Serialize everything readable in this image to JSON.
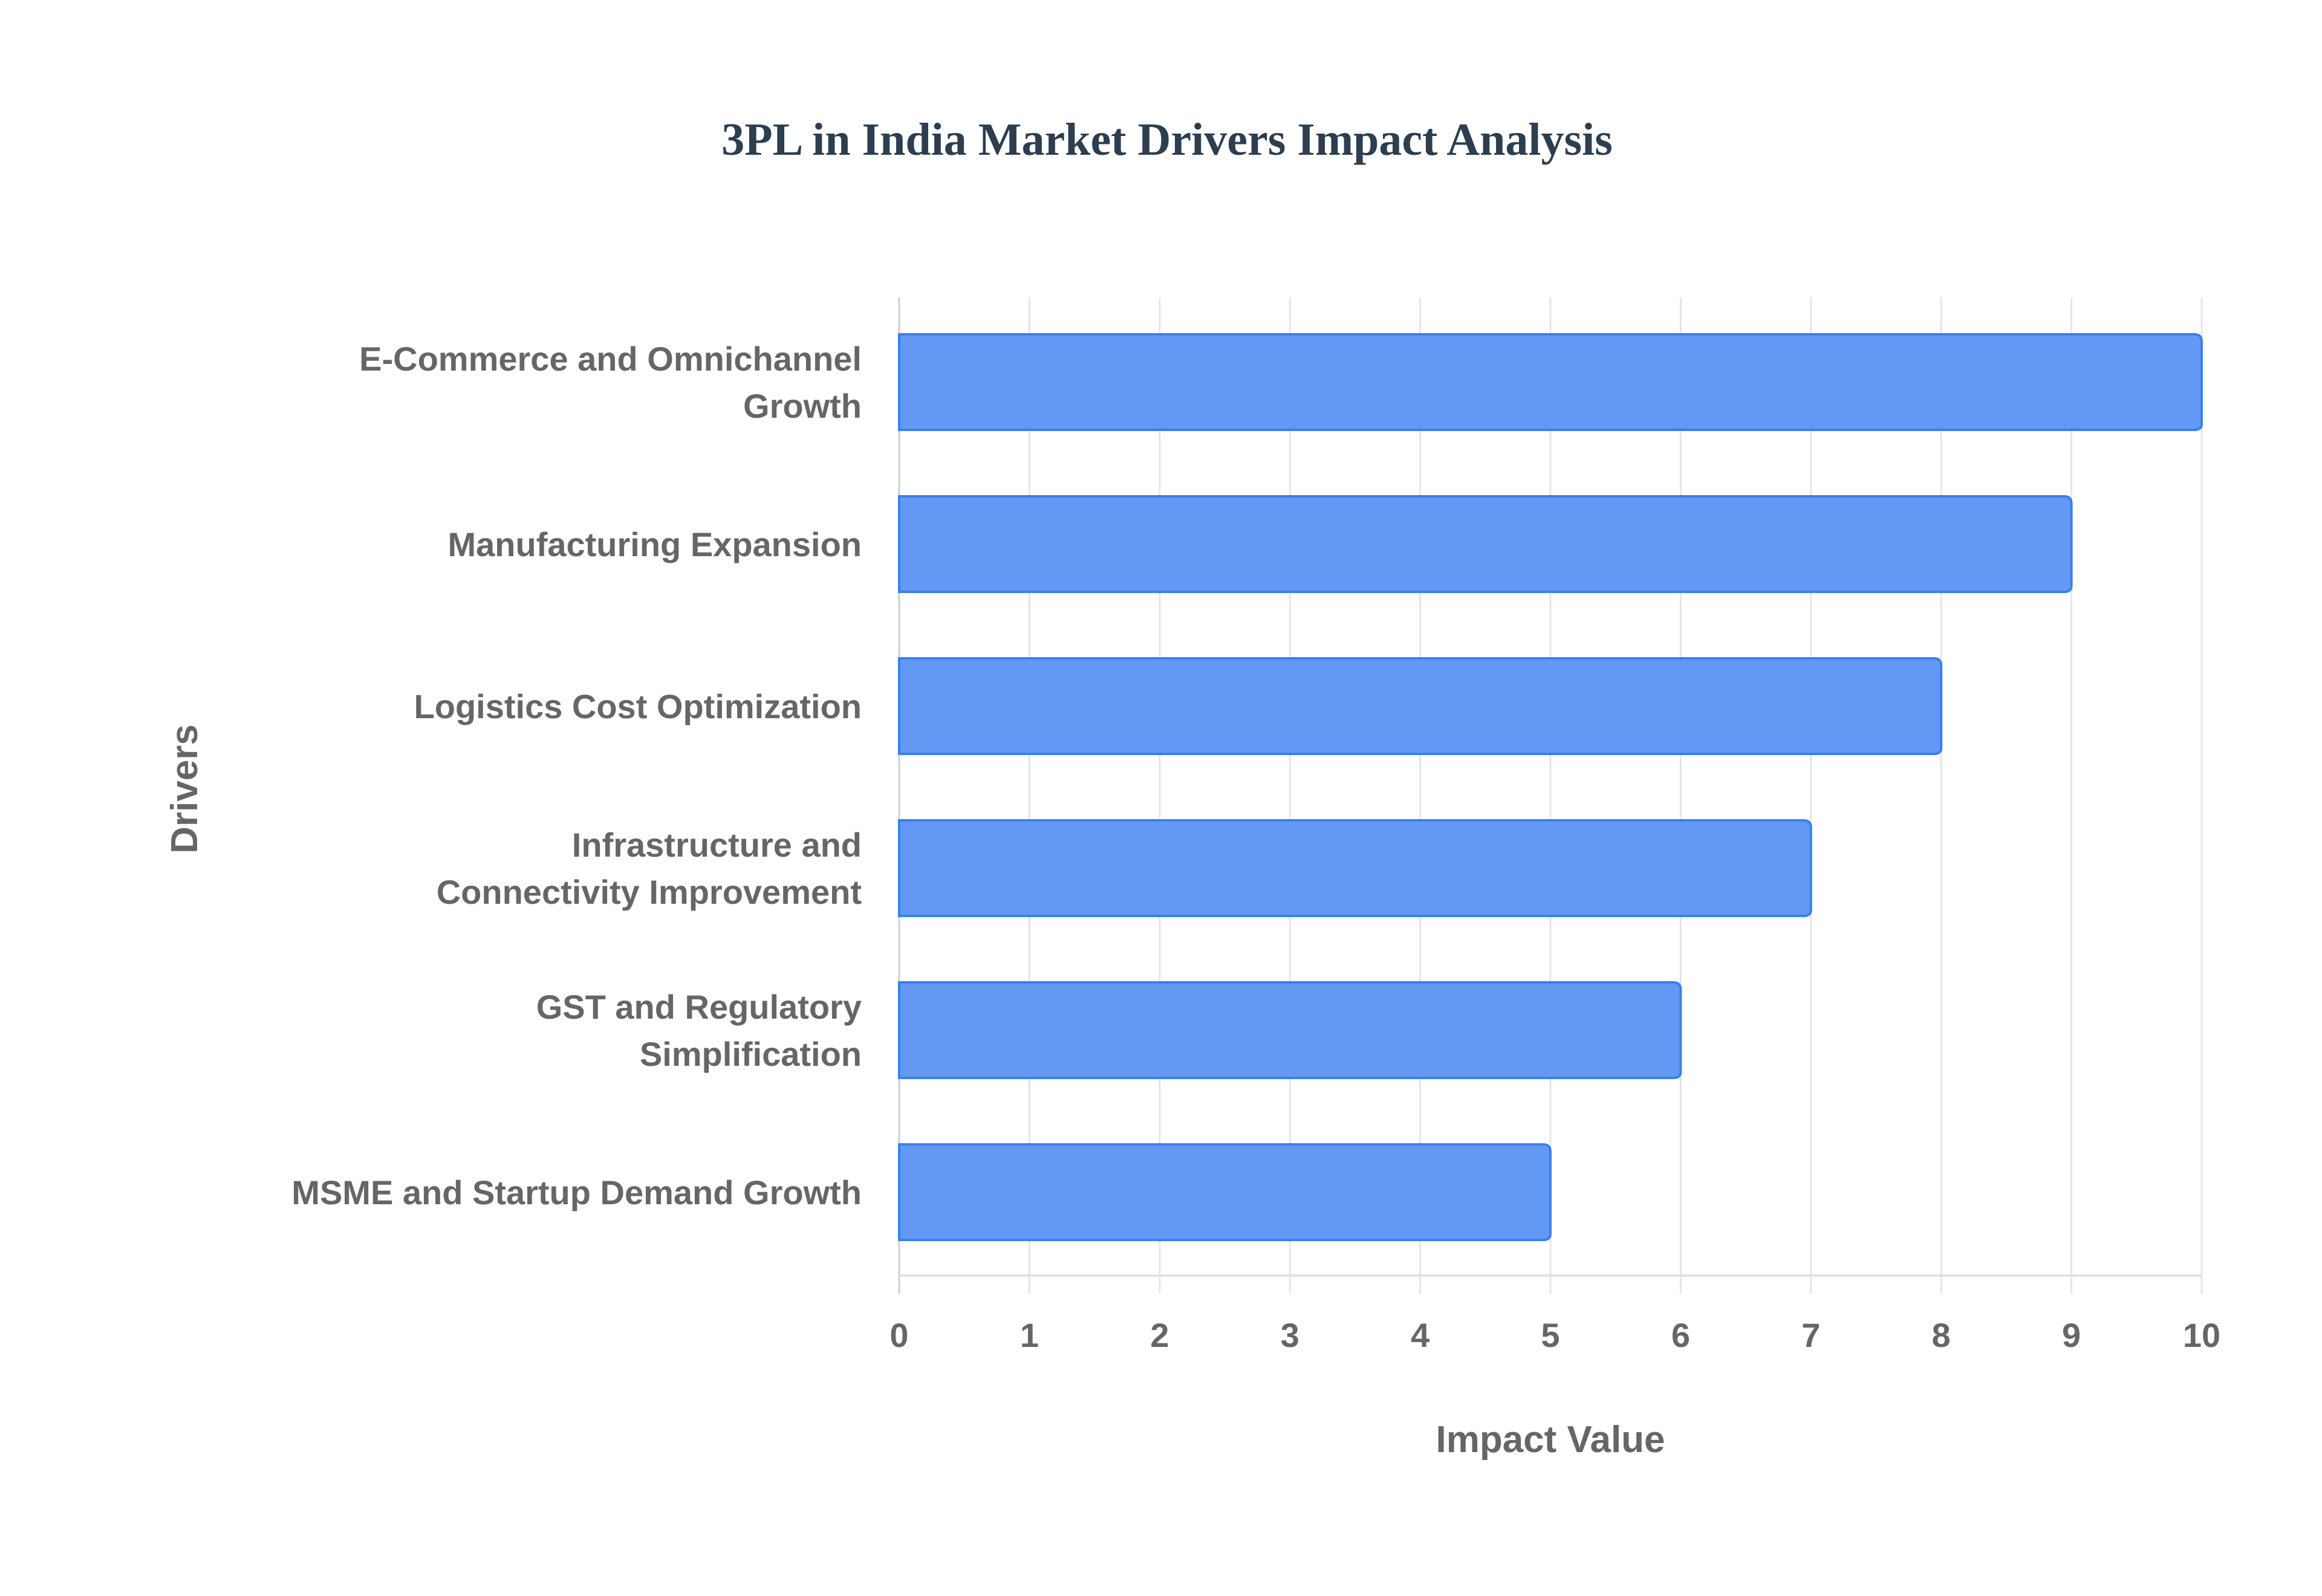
{
  "chart_data": {
    "type": "bar",
    "orientation": "horizontal",
    "title": "3PL in India Market Drivers Impact Analysis",
    "xlabel": "Impact Value",
    "ylabel": "Drivers",
    "categories": [
      [
        "E-Commerce and Omnichannel",
        "Growth"
      ],
      [
        "Manufacturing Expansion"
      ],
      [
        "Logistics Cost Optimization"
      ],
      [
        "Infrastructure and",
        "Connectivity Improvement"
      ],
      [
        "GST and Regulatory",
        "Simplification"
      ],
      [
        "MSME and Startup Demand Growth"
      ]
    ],
    "values": [
      10,
      9,
      8,
      7,
      6,
      5
    ],
    "xlim": [
      0,
      10
    ],
    "xticks": [
      "0",
      "1",
      "2",
      "3",
      "4",
      "5",
      "6",
      "7",
      "8",
      "9",
      "10"
    ],
    "grid": true,
    "legend": "none",
    "colors": {
      "bar_fill": "#6399f5",
      "bar_border": "#3b7ff0",
      "title": "#2c3e50",
      "text": "#666666",
      "grid": "#e6e6e6"
    }
  }
}
